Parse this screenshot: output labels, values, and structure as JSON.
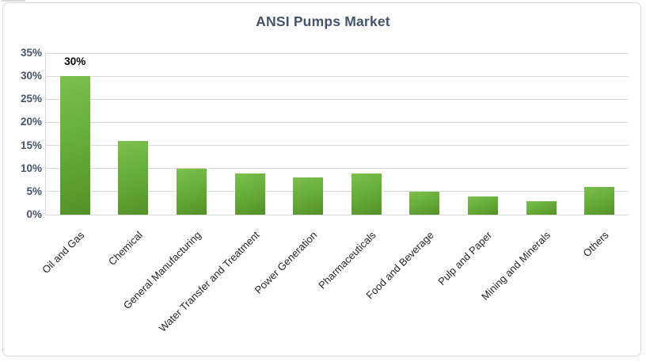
{
  "chart_data": {
    "type": "bar",
    "title": "ANSI Pumps Market",
    "categories": [
      "Oil and Gas",
      "Chemical",
      "General Manufacturing",
      "Water Transfer and Treatment",
      "Power Generation",
      "Pharmaceuticals",
      "Food and Beverage",
      "Pulp and Paper",
      "Mining and Minerals",
      "Others"
    ],
    "values": [
      30,
      16,
      10,
      9,
      8,
      9,
      5,
      4,
      3,
      6
    ],
    "unit": "%",
    "xlabel": "",
    "ylabel": "",
    "ylim": [
      0,
      35
    ],
    "ytick_step": 5,
    "ytick_labels": [
      "0%",
      "5%",
      "10%",
      "15%",
      "20%",
      "25%",
      "30%",
      "35%"
    ],
    "data_labels": [
      {
        "index": 0,
        "text": "30%"
      }
    ],
    "grid": true,
    "legend": false,
    "colors": {
      "bar_main": "#68ae3a",
      "bar_light": "#7cc04d",
      "bar_dark": "#549029",
      "title_text": "#44546a",
      "y_axis_text": "#44546a",
      "x_axis_text": "#262626",
      "gridline": "#d9d9d9",
      "frame_border": "#d9d9d9",
      "background": "#ffffff"
    }
  }
}
